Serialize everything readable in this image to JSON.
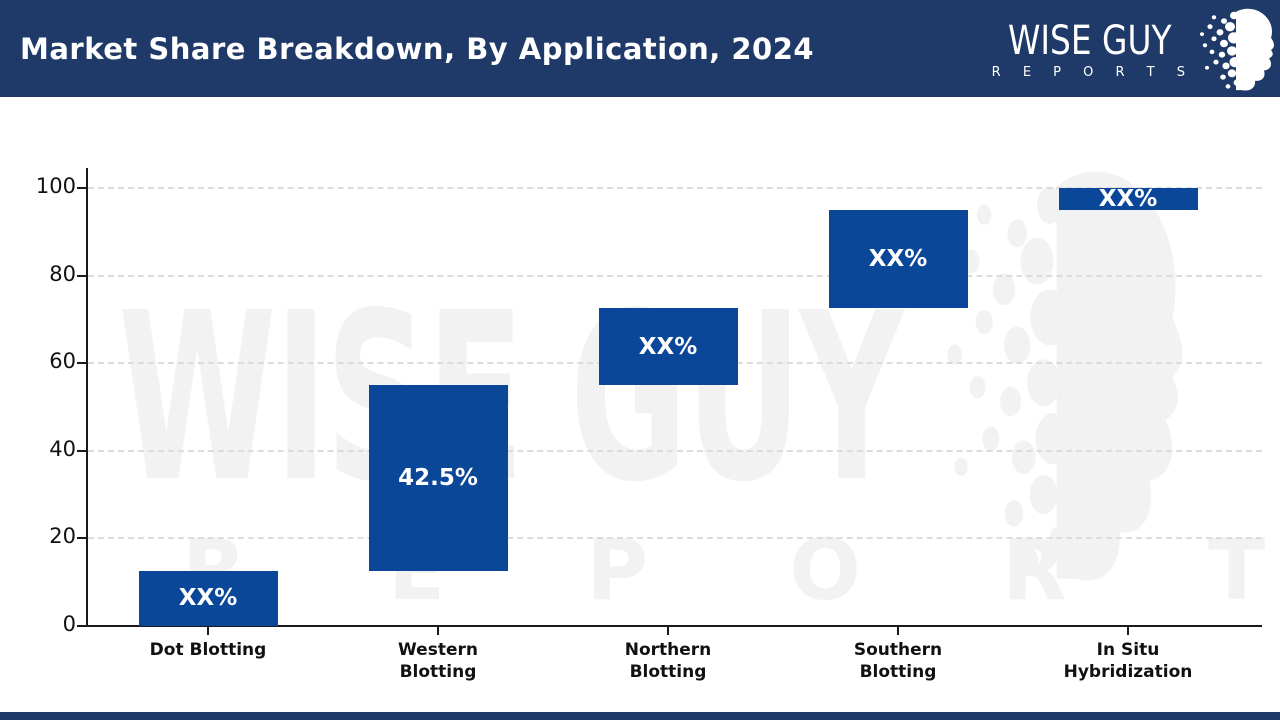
{
  "header": {
    "title": "Market Share Breakdown, By Application, 2024",
    "logo": {
      "line1": "WISE GUY",
      "line2": "R E P O R T S"
    }
  },
  "watermark": {
    "line1": "WISE GUY",
    "line2": "R E P O R T S"
  },
  "colors": {
    "header_bg": "#1f3a68",
    "footer_bg": "#1f3a68",
    "bar": "#0b4799",
    "bar_label": "#ffffff",
    "axis": "#1a1a1a",
    "grid": "#dcdcdc",
    "watermark": "#f2f2f2",
    "tick_text": "#111111"
  },
  "chart_data": {
    "type": "bar",
    "subtype": "floating-waterfall",
    "title": "Market Share Breakdown, By Application, 2024",
    "categories": [
      "Dot Blotting",
      "Western Blotting",
      "Northern Blotting",
      "Southern Blotting",
      "In Situ Hybridization"
    ],
    "bars": [
      {
        "category": "Dot Blotting",
        "start": 0,
        "end": 12.5,
        "label": "XX%"
      },
      {
        "category": "Western Blotting",
        "start": 12.5,
        "end": 55,
        "label": "42.5%"
      },
      {
        "category": "Northern Blotting",
        "start": 55,
        "end": 72.5,
        "label": "XX%"
      },
      {
        "category": "Southern Blotting",
        "start": 72.5,
        "end": 95,
        "label": "XX%"
      },
      {
        "category": "In Situ Hybridization",
        "start": 95,
        "end": 100,
        "label": "XX%"
      }
    ],
    "yticks": [
      0,
      20,
      40,
      60,
      80,
      100
    ],
    "ylim": [
      0,
      105
    ],
    "xlabel": "",
    "ylabel": "",
    "grid": "horizontal-dashed",
    "legend": "none"
  }
}
